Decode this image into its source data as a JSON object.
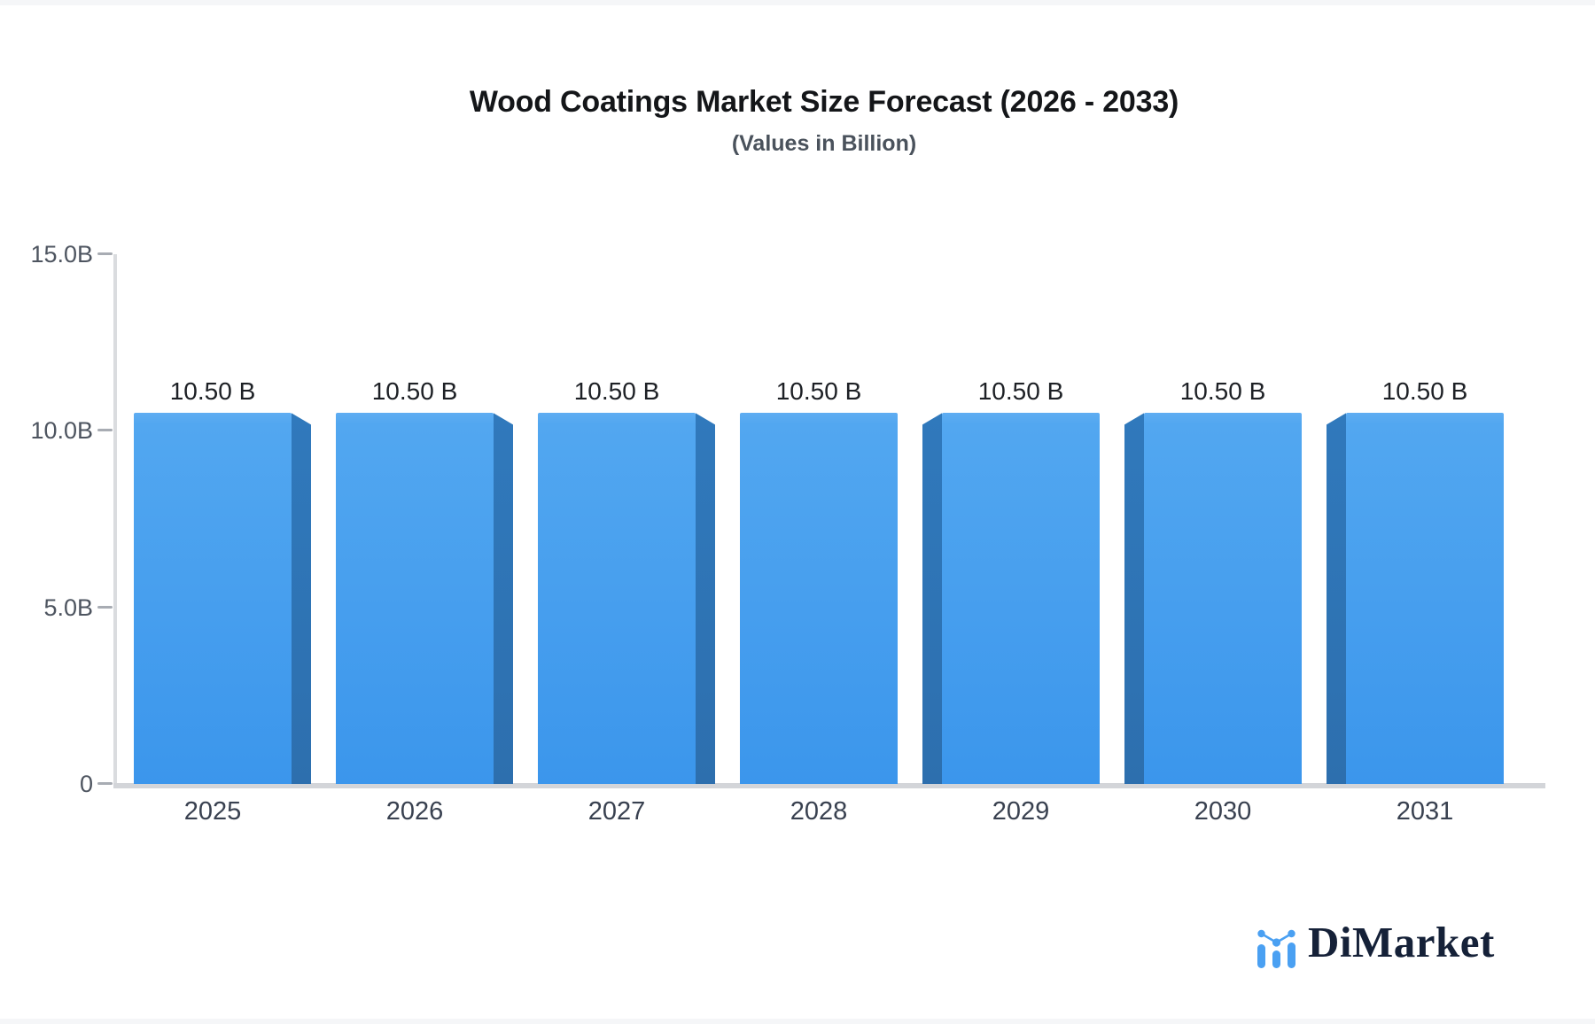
{
  "page": {
    "background_color": "#ffffff",
    "edge_strip_color": "#f5f6f8"
  },
  "chart_data": {
    "type": "bar",
    "title": "Wood Coatings Market Size Forecast (2026 - 2033)",
    "subtitle": "(Values in Billion)",
    "categories": [
      "2025",
      "2026",
      "2027",
      "2028",
      "2029",
      "2030",
      "2031"
    ],
    "values": [
      10.5,
      10.5,
      10.5,
      10.5,
      10.5,
      10.5,
      10.5
    ],
    "value_labels": [
      "10.50 B",
      "10.50 B",
      "10.50 B",
      "10.50 B",
      "10.50 B",
      "10.50 B",
      "10.50 B"
    ],
    "xlabel": "",
    "ylabel": "",
    "ylim": [
      0,
      15
    ],
    "yticks": [
      {
        "value": 0,
        "label": "0"
      },
      {
        "value": 5,
        "label": "5.0B"
      },
      {
        "value": 10,
        "label": "10.0B"
      },
      {
        "value": 15,
        "label": "15.0B"
      }
    ],
    "grid": false,
    "legend": "none",
    "bar_color_top": "#52a7f0",
    "bar_color_bottom": "#3b96ec",
    "bar_side_color": "#2e74b6",
    "axis_color": "#d3d5d9",
    "style_note": "3D perspective bars: left bars show darker right face, right bars show darker left face, center bar flat"
  },
  "branding": {
    "logo_text": "DiMarket",
    "logo_text_color": "#152138",
    "logo_accent_color": "#4aa0f2"
  }
}
